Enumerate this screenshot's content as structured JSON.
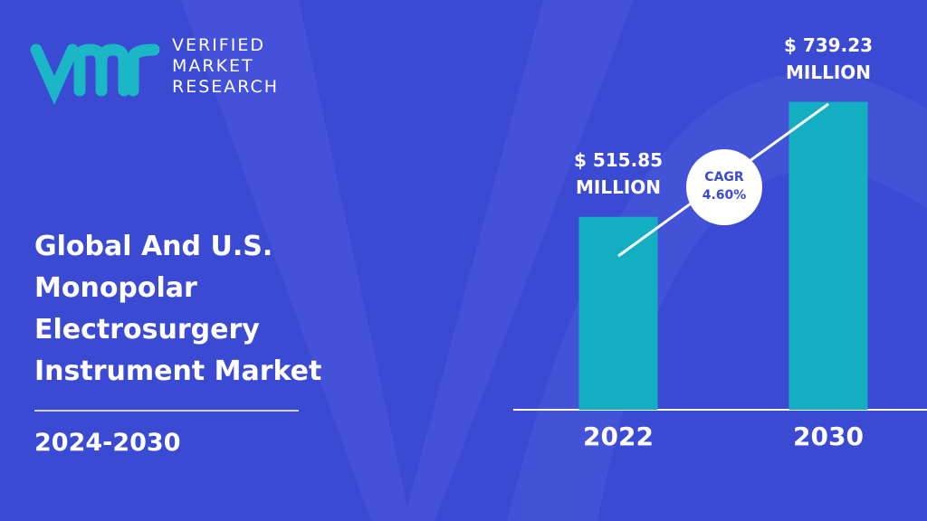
{
  "logo": {
    "lines": [
      "VERIFIED",
      "MARKET",
      "RESEARCH"
    ]
  },
  "title": "Global And U.S. Monopolar Electrosurgery Instrument Market",
  "period": "2024-2030",
  "chart_data": {
    "type": "bar",
    "categories": [
      "2022",
      "2030"
    ],
    "values": [
      515.85,
      739.23
    ],
    "value_labels": [
      "$ 515.85 MILLION",
      "$ 739.23 MILLION"
    ],
    "color": "#14aec2",
    "annotation": "CAGR 4.60%",
    "ylim": [
      141,
      800
    ]
  }
}
